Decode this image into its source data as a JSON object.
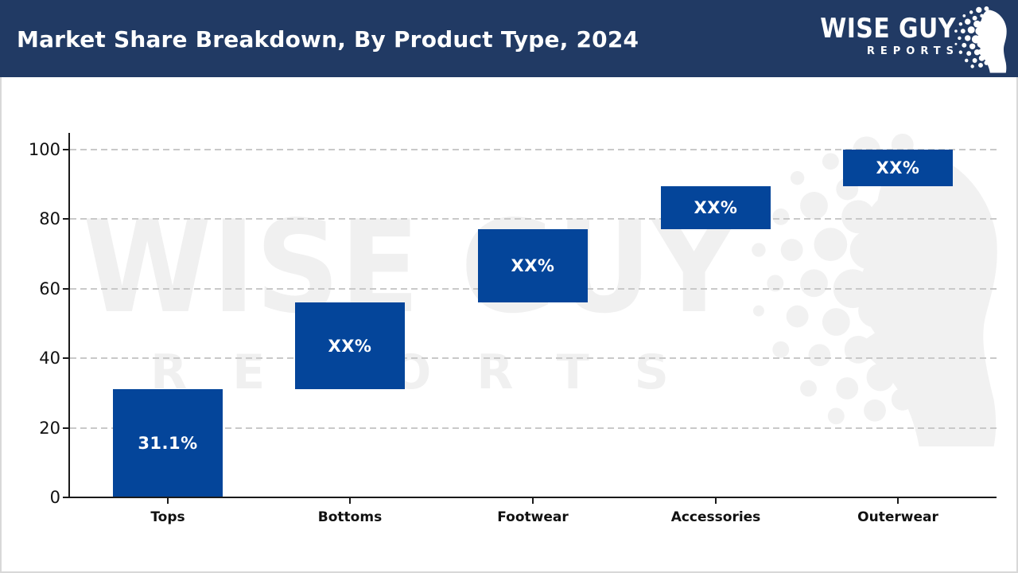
{
  "header": {
    "title": "Market Share Breakdown, By Product Type, 2024",
    "logo": {
      "line1": "WISE GUY",
      "line2": "REPORTS"
    }
  },
  "watermark": {
    "line1": "WISE GUY",
    "line2": "REPORTS"
  },
  "colors": {
    "header_bg": "#213a64",
    "bar": "#04459a",
    "axis": "#1a1a1a",
    "gridline": "#c9c9c9",
    "bar_label": "#ffffff",
    "watermark": "#f0f0f0"
  },
  "chart_data": {
    "type": "bar",
    "subtype": "waterfall",
    "title": "Market Share Breakdown, By Product Type, 2024",
    "categories": [
      "Tops",
      "Bottoms",
      "Footwear",
      "Accessories",
      "Outerwear"
    ],
    "segments": [
      {
        "category": "Tops",
        "start": 0,
        "end": 31.1,
        "label": "31.1%"
      },
      {
        "category": "Bottoms",
        "start": 31.1,
        "end": 56.0,
        "label": "XX%"
      },
      {
        "category": "Footwear",
        "start": 56.0,
        "end": 77.1,
        "label": "XX%"
      },
      {
        "category": "Accessories",
        "start": 77.1,
        "end": 89.4,
        "label": "XX%"
      },
      {
        "category": "Outerwear",
        "start": 89.4,
        "end": 100,
        "label": "XX%"
      }
    ],
    "yticks": [
      0,
      20,
      40,
      60,
      80,
      100
    ],
    "ylim": [
      0,
      104
    ],
    "xlabel": "",
    "ylabel": "",
    "grid": "dashed-horizontal",
    "legend": "none"
  }
}
